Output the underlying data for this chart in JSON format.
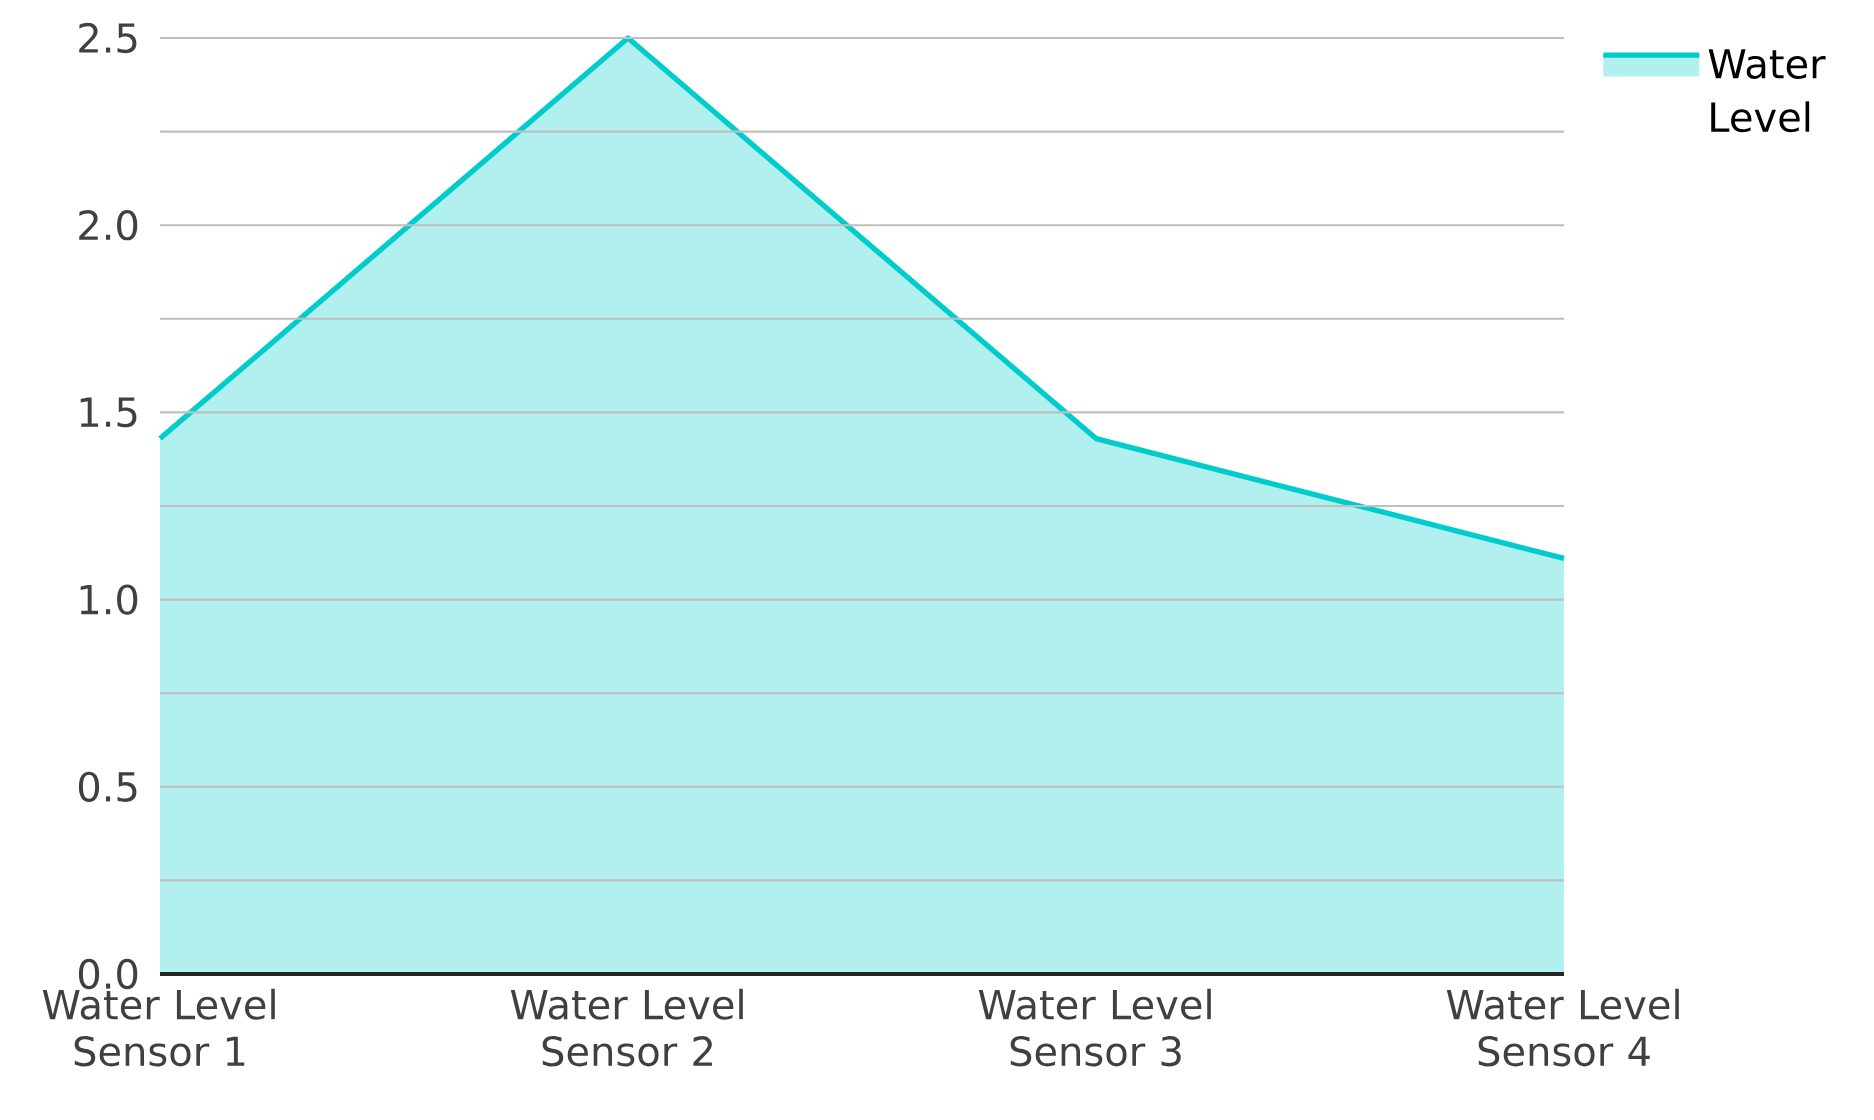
{
  "chart_data": {
    "type": "area",
    "categories": [
      "Water Level Sensor 1",
      "Water Level Sensor 2",
      "Water Level Sensor 3",
      "Water Level Sensor 4"
    ],
    "series": [
      {
        "name": "Water Level",
        "color": "#00cccc",
        "values": [
          1.43,
          2.5,
          1.43,
          1.11
        ]
      }
    ],
    "ylim": [
      0,
      2.5
    ],
    "yticks": [
      {
        "value": 0,
        "label": "0.0"
      },
      {
        "value": 0.25,
        "label": null
      },
      0.5,
      {
        "value": 0.75,
        "label": null
      },
      {
        "value": 1,
        "label": "1.0"
      },
      {
        "value": 1.25,
        "label": null
      },
      1.5,
      {
        "value": 1.75,
        "label": null
      },
      {
        "value": 2,
        "label": "2.0"
      },
      {
        "value": 2.25,
        "label": null
      },
      2.5
    ],
    "grid": "y",
    "legend": "top right"
  }
}
